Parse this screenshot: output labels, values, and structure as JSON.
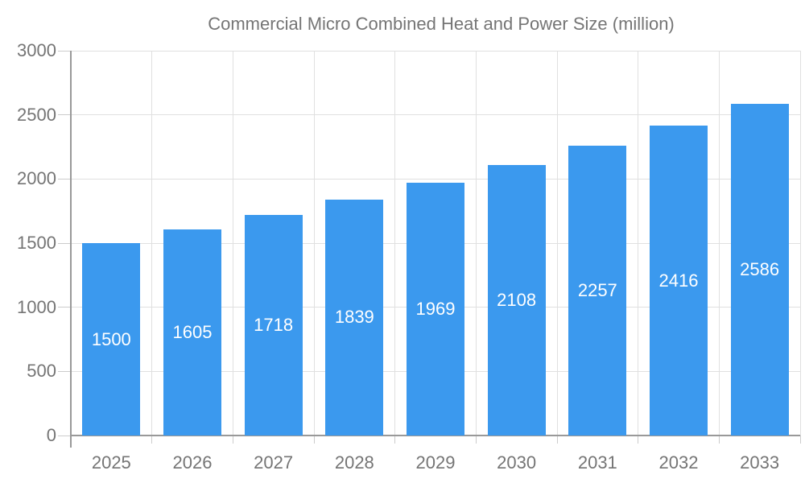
{
  "legend": {
    "label": "Commercial Micro Combined Heat and Power Size (million)"
  },
  "colors": {
    "bar": "#3B99EE",
    "gridline": "#e0e0e0",
    "tick": "#cccccc",
    "axis": "#999999",
    "axis_text": "#757575",
    "value_label_text": "#ffffff",
    "background": "#ffffff"
  },
  "chart_data": {
    "type": "bar",
    "title": "Commercial Micro Combined Heat and Power Size (million)",
    "categories": [
      "2025",
      "2026",
      "2027",
      "2028",
      "2029",
      "2030",
      "2031",
      "2032",
      "2033"
    ],
    "values": [
      1500,
      1605,
      1718,
      1839,
      1969,
      2108,
      2257,
      2416,
      2586
    ],
    "value_labels": [
      "1500",
      "1605",
      "1718",
      "1839",
      "1969",
      "2108",
      "2257",
      "2416",
      "2586"
    ],
    "ytick_labels": [
      "0",
      "500",
      "1000",
      "1500",
      "2000",
      "2500",
      "3000"
    ],
    "xlabel": "",
    "ylabel": "",
    "ylim": [
      0,
      3000
    ],
    "ytick_step": 500,
    "grid": true,
    "legend_position": "top",
    "value_labels_inside_bars": true
  }
}
